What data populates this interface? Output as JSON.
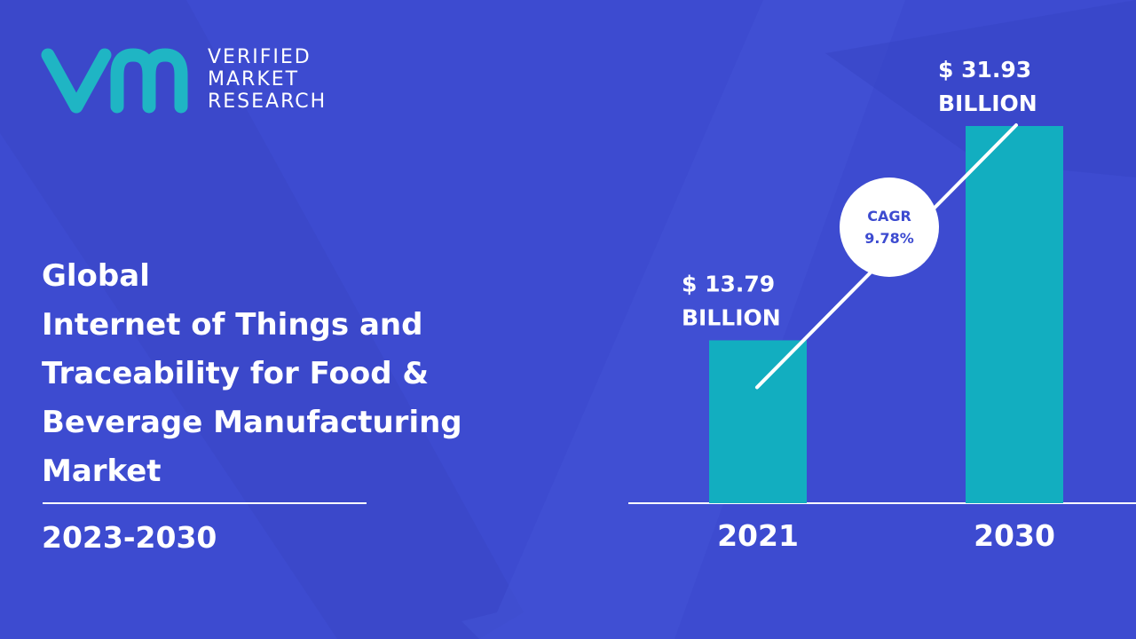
{
  "brand": {
    "line1": "VERIFIED",
    "line2": "MARKET",
    "line3": "RESEARCH",
    "logo_icon": "vmr-logo",
    "logo_color": "#1fb5c4"
  },
  "title": {
    "line1": "Global",
    "line2": "Internet of Things and",
    "line3": "Traceability for Food &",
    "line4": "Beverage Manufacturing",
    "line5": "Market"
  },
  "period": "2023-2030",
  "colors": {
    "background": "#3d4bd0",
    "bar": "#12aec0",
    "text": "#ffffff"
  },
  "chart_data": {
    "type": "bar",
    "categories": [
      "2021",
      "2030"
    ],
    "values": [
      13.79,
      31.93
    ],
    "value_labels": [
      [
        "$ 13.79",
        "BILLION"
      ],
      [
        "$ 31.93",
        "BILLION"
      ]
    ],
    "cagr": {
      "line1": "CAGR",
      "line2": "9.78%"
    },
    "grid": false,
    "legend": "none"
  }
}
